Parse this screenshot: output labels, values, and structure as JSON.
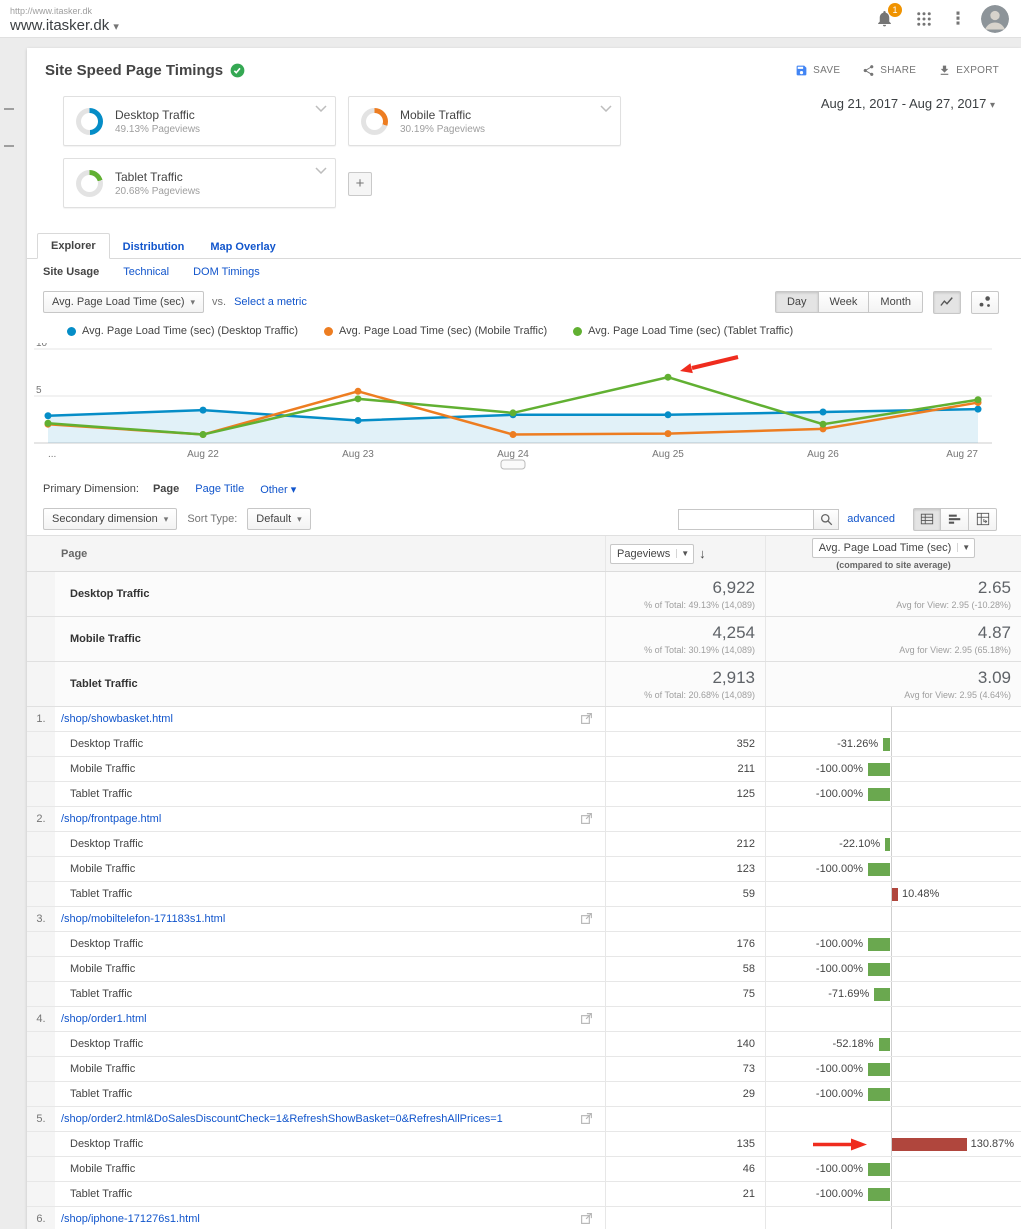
{
  "header": {
    "url": "http://www.itasker.dk",
    "account": "www.itasker.dk",
    "notification_badge": "1"
  },
  "report": {
    "title": "Site Speed Page Timings",
    "save": "SAVE",
    "share": "SHARE",
    "export": "EXPORT",
    "date_range": "Aug 21, 2017 - Aug 27, 2017"
  },
  "segments": [
    {
      "name": "Desktop Traffic",
      "detail": "49.13% Pageviews",
      "pct": 49.13,
      "color": "#058dc7"
    },
    {
      "name": "Mobile Traffic",
      "detail": "30.19% Pageviews",
      "pct": 30.19,
      "color": "#ed7d21"
    },
    {
      "name": "Tablet Traffic",
      "detail": "20.68% Pageviews",
      "pct": 20.68,
      "color": "#61b032"
    }
  ],
  "tabs": {
    "active": "Explorer",
    "items": [
      "Explorer",
      "Distribution",
      "Map Overlay"
    ]
  },
  "subtabs": {
    "active": "Site Usage",
    "items": [
      "Site Usage",
      "Technical",
      "DOM Timings"
    ]
  },
  "metric_bar": {
    "metric_dropdown": "Avg. Page Load Time (sec)",
    "vs_label": "vs.",
    "select_metric": "Select a metric",
    "granularity": [
      "Day",
      "Week",
      "Month"
    ],
    "granularity_active": "Day"
  },
  "chart_data": {
    "type": "line",
    "x": [
      "...",
      "Aug 22",
      "Aug 23",
      "Aug 24",
      "Aug 25",
      "Aug 26",
      "Aug 27"
    ],
    "ylim": [
      0,
      10
    ],
    "yticks": [
      5,
      10
    ],
    "grid": "horizontal",
    "legend_position": "top",
    "series": [
      {
        "name": "Avg. Page Load Time (sec) (Desktop Traffic)",
        "color": "#058dc7",
        "fill": true,
        "values": [
          2.9,
          3.5,
          2.4,
          3.0,
          3.0,
          3.3,
          3.6
        ]
      },
      {
        "name": "Avg. Page Load Time (sec) (Mobile Traffic)",
        "color": "#ed7d21",
        "fill": false,
        "values": [
          2.0,
          0.9,
          5.5,
          0.9,
          1.0,
          1.5,
          4.3
        ]
      },
      {
        "name": "Avg. Page Load Time (sec) (Tablet Traffic)",
        "color": "#61b032",
        "fill": false,
        "values": [
          2.1,
          0.9,
          4.7,
          3.2,
          7.0,
          2.0,
          4.6
        ]
      }
    ]
  },
  "annotations": {
    "color": "#ef2c1e",
    "chart_note": "arrow pointing at Tablet Traffic peak on Aug 25",
    "table_note": "arrow pointing at Desktop Traffic 130.87% bar"
  },
  "dimension_bar": {
    "label": "Primary Dimension:",
    "options": [
      {
        "label": "Page",
        "active": true
      },
      {
        "label": "Page Title",
        "active": false
      },
      {
        "label": "Other",
        "active": false,
        "caret": true
      }
    ]
  },
  "controls": {
    "secondary_dimension": "Secondary dimension",
    "sort_type_label": "Sort Type:",
    "sort_type_value": "Default",
    "advanced": "advanced"
  },
  "table": {
    "columns": {
      "page": "Page",
      "pageviews": "Pageviews",
      "metric": "Avg. Page Load Time (sec)",
      "metric_note": "(compared to site average)"
    },
    "colors": {
      "negative_bar": "#6aa84f",
      "positive_bar": "#b0463d"
    },
    "summary": [
      {
        "name": "Desktop Traffic",
        "pageviews": "6,922",
        "pageviews_note": "% of Total: 49.13% (14,089)",
        "metric": "2.65",
        "metric_note": "Avg for View: 2.95 (-10.28%)"
      },
      {
        "name": "Mobile Traffic",
        "pageviews": "4,254",
        "pageviews_note": "% of Total: 30.19% (14,089)",
        "metric": "4.87",
        "metric_note": "Avg for View: 2.95 (65.18%)"
      },
      {
        "name": "Tablet Traffic",
        "pageviews": "2,913",
        "pageviews_note": "% of Total: 20.68% (14,089)",
        "metric": "3.09",
        "metric_note": "Avg for View: 2.95 (4.64%)"
      }
    ],
    "rows": [
      {
        "index": "1.",
        "page": "/shop/showbasket.html",
        "segments": [
          {
            "name": "Desktop Traffic",
            "pageviews": "352",
            "delta": "-31.26%",
            "delta_value": -31.26
          },
          {
            "name": "Mobile Traffic",
            "pageviews": "211",
            "delta": "-100.00%",
            "delta_value": -100
          },
          {
            "name": "Tablet Traffic",
            "pageviews": "125",
            "delta": "-100.00%",
            "delta_value": -100
          }
        ]
      },
      {
        "index": "2.",
        "page": "/shop/frontpage.html",
        "segments": [
          {
            "name": "Desktop Traffic",
            "pageviews": "212",
            "delta": "-22.10%",
            "delta_value": -22.1
          },
          {
            "name": "Mobile Traffic",
            "pageviews": "123",
            "delta": "-100.00%",
            "delta_value": -100
          },
          {
            "name": "Tablet Traffic",
            "pageviews": "59",
            "delta": "10.48%",
            "delta_value": 10.48
          }
        ]
      },
      {
        "index": "3.",
        "page": "/shop/mobiltelefon-171183s1.html",
        "segments": [
          {
            "name": "Desktop Traffic",
            "pageviews": "176",
            "delta": "-100.00%",
            "delta_value": -100
          },
          {
            "name": "Mobile Traffic",
            "pageviews": "58",
            "delta": "-100.00%",
            "delta_value": -100
          },
          {
            "name": "Tablet Traffic",
            "pageviews": "75",
            "delta": "-71.69%",
            "delta_value": -71.69
          }
        ]
      },
      {
        "index": "4.",
        "page": "/shop/order1.html",
        "segments": [
          {
            "name": "Desktop Traffic",
            "pageviews": "140",
            "delta": "-52.18%",
            "delta_value": -52.18
          },
          {
            "name": "Mobile Traffic",
            "pageviews": "73",
            "delta": "-100.00%",
            "delta_value": -100
          },
          {
            "name": "Tablet Traffic",
            "pageviews": "29",
            "delta": "-100.00%",
            "delta_value": -100
          }
        ]
      },
      {
        "index": "5.",
        "page": "/shop/order2.html&DoSalesDiscountCheck=1&RefreshShowBasket=0&RefreshAllPrices=1",
        "segments": [
          {
            "name": "Desktop Traffic",
            "pageviews": "135",
            "delta": "130.87%",
            "delta_value": 130.87,
            "arrow": true
          },
          {
            "name": "Mobile Traffic",
            "pageviews": "46",
            "delta": "-100.00%",
            "delta_value": -100
          },
          {
            "name": "Tablet Traffic",
            "pageviews": "21",
            "delta": "-100.00%",
            "delta_value": -100
          }
        ]
      },
      {
        "index": "6.",
        "page": "/shop/iphone-171276s1.html",
        "segments": []
      }
    ]
  }
}
